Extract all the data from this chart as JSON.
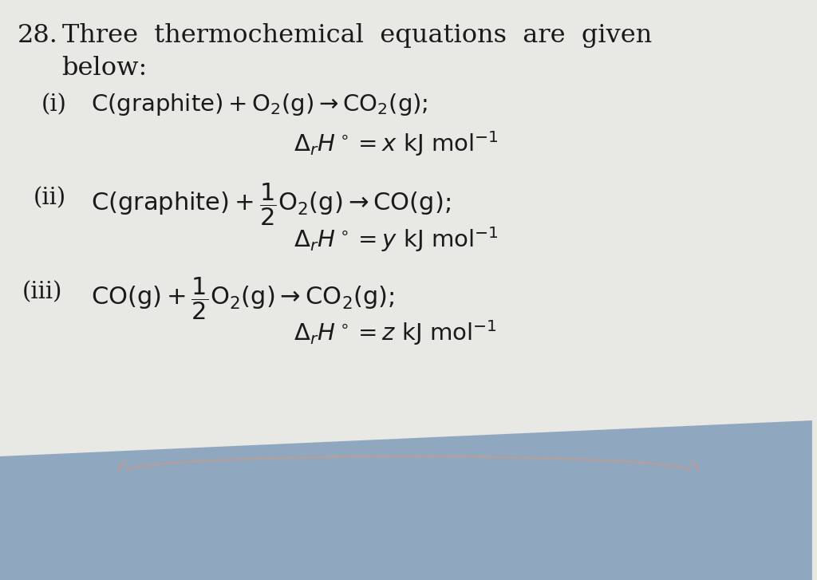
{
  "background_color": "#d8dfe8",
  "paper_color": "#e8e8e4",
  "text_color": "#1a1a1a",
  "question_number": "28.",
  "intro_line1": "Three  thermochemical  equations  are  given",
  "intro_line2": "below:",
  "eq1_label": "(i)",
  "eq1_line1": "$\\mathrm{C(graphite) + O_2(g) \\rightarrow CO_2(g);}$",
  "eq1_line2": "$\\Delta_r H^\\circ = x\\ \\mathrm{kJ\\ mol^{-1}}$",
  "eq2_label": "(ii)",
  "eq2_line1": "$\\mathrm{C(graphite) + \\dfrac{1}{2}O_2(g) \\rightarrow CO(g);}$",
  "eq2_line2": "$\\Delta_r H^\\circ = y\\ \\mathrm{kJ\\ mol^{-1}}$",
  "eq3_label": "(iii)",
  "eq3_line1": "$\\mathrm{CO(g) + \\dfrac{1}{2}O_2(g) \\rightarrow CO_2(g);}$",
  "eq3_line2": "$\\Delta_r H^\\circ = z\\ \\mathrm{kJ\\ mol^{-1}}$",
  "font_size": 21,
  "label_font_size": 21,
  "qnum_font_size": 23,
  "bracket_color": "#b0a0a0",
  "blue_strip_color": "#8fa8c0"
}
